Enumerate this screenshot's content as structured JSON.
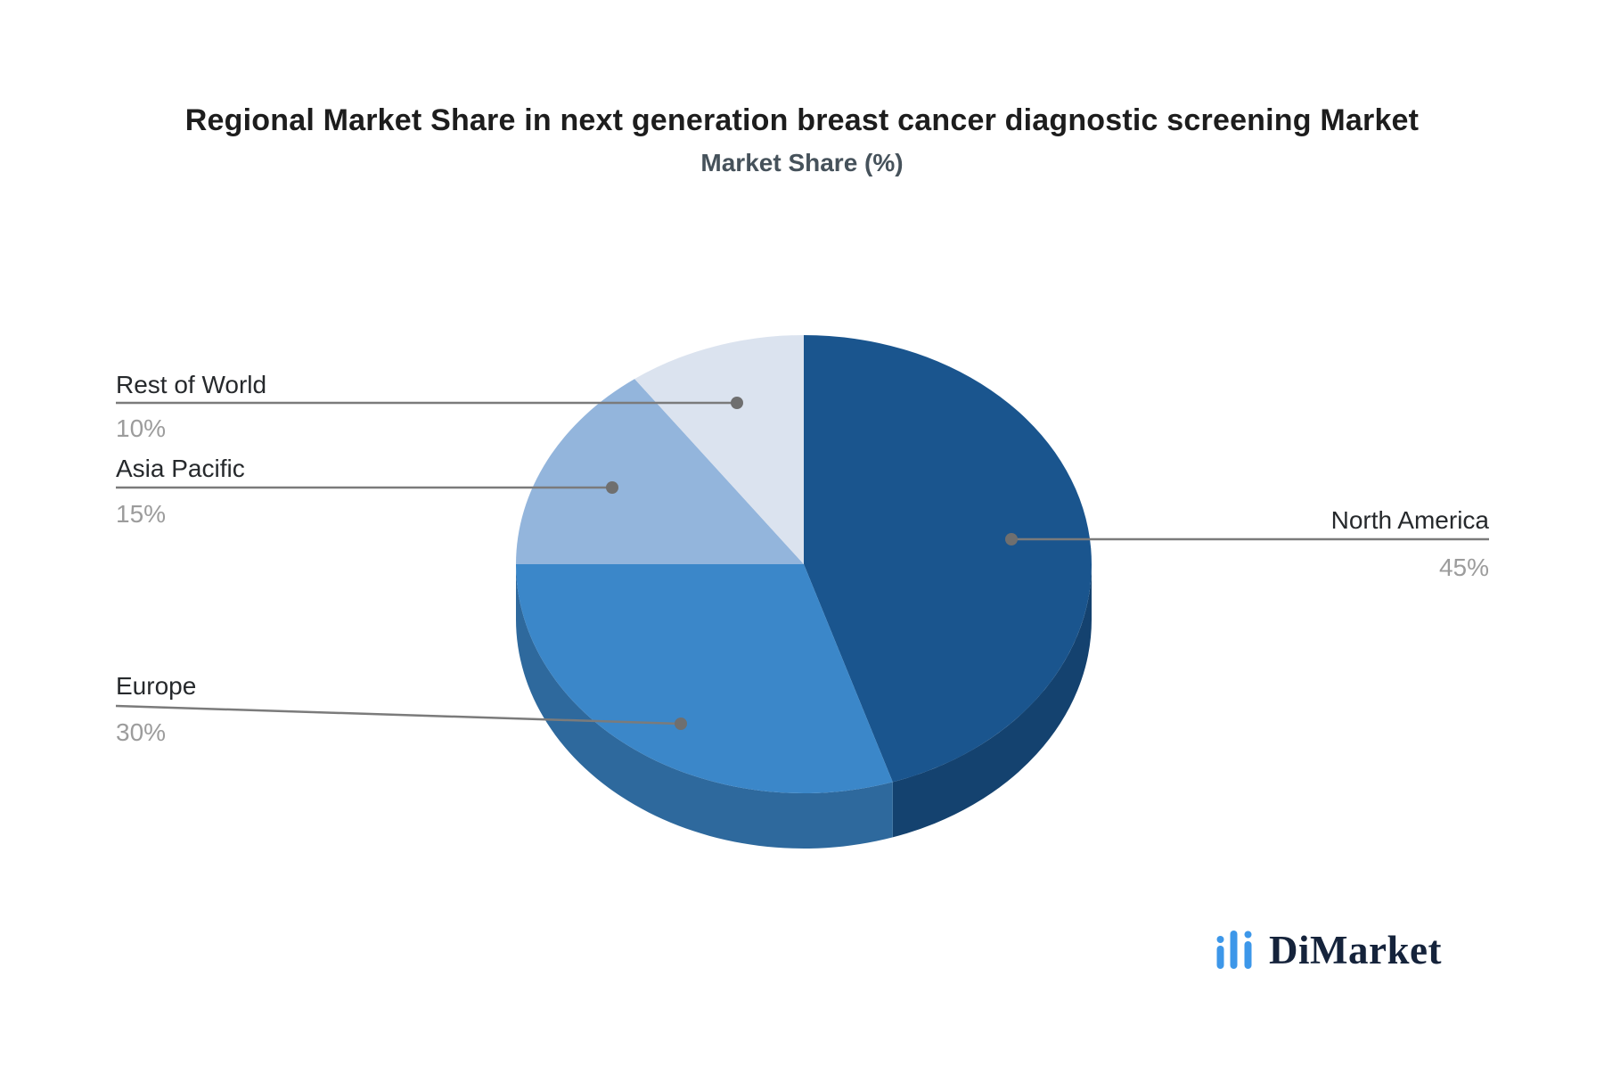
{
  "chart_data": {
    "type": "pie",
    "style": "3d",
    "title": "Regional Market Share in next generation breast cancer diagnostic screening Market",
    "subtitle": "Market Share (%)",
    "categories": [
      "North America",
      "Europe",
      "Asia Pacific",
      "Rest of World"
    ],
    "values": [
      45,
      30,
      15,
      10
    ],
    "labels": [
      "45%",
      "30%",
      "15%",
      "10%"
    ],
    "unit": "%",
    "colors": [
      "#1A558E",
      "#3B87C9",
      "#93B5DC",
      "#DBE3EF"
    ],
    "start_angle_deg": 0,
    "direction": "clockwise",
    "legend": "callout-labels"
  },
  "branding": {
    "logo_text": "DiMarket",
    "logo_text_color": "#15233B",
    "logo_icon": "bar-chart-icon",
    "logo_icon_color": "#3D97E9"
  },
  "style": {
    "background": "#FFFFFF",
    "title_color": "#1D1D1D",
    "subtitle_color": "#46525B",
    "label_color": "#26292C",
    "percent_color": "#9C9C9C",
    "leader_line_color": "#7B7B7B",
    "leader_dot_color": "#6F6F6F"
  }
}
